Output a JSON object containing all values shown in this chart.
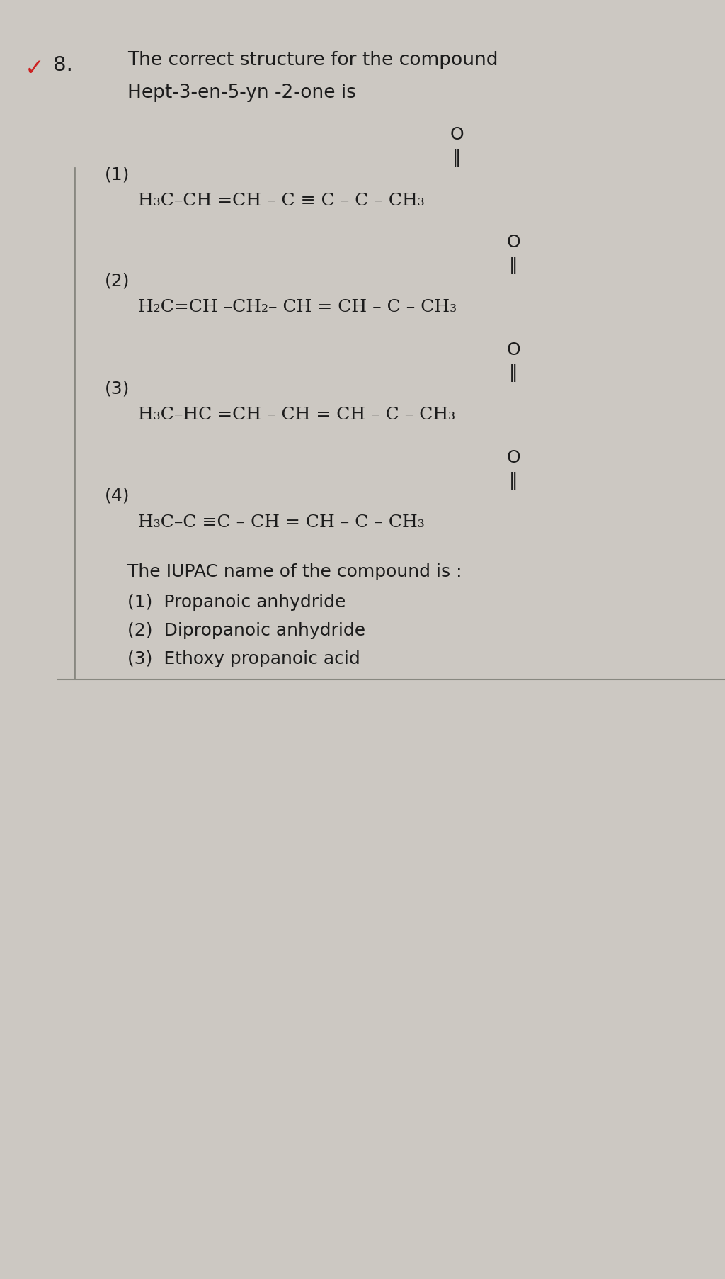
{
  "bg_color_top": "#ccc8c2",
  "bg_color_white": "#edecea",
  "bg_color_bottom": "#5c1010",
  "question_num": "8.",
  "title_line1": "The correct structure for the compound",
  "title_line2": "Hept-3-en-5-yn -2-one is",
  "opt1_label": "(1)",
  "opt1_formula": "H₃C–CH =CH – C ≡ C – C – CH₃",
  "opt2_label": "(2)",
  "opt2_formula": "H₂C=CH –CH₂– CH = CH – C – CH₃",
  "opt3_label": "(3)",
  "opt3_formula": "H₃C–HC =CH – CH = CH – C – CH₃",
  "opt4_label": "(4)",
  "opt4_formula": "H₃C–C ≡C – CH = CH – C – CH₃",
  "iupac_title": "The IUPAC name of the compound is :",
  "iupac_1": "(1)  Propanoic anhydride",
  "iupac_2": "(2)  Dipropanoic anhydride",
  "iupac_3": "(3)  Ethoxy propanoic acid",
  "text_color": "#1c1c1c",
  "checkmark_color": "#cc2222",
  "line_color": "#888880",
  "fs_title": 19,
  "fs_formula": 18,
  "fs_label": 18,
  "fs_qnum": 21,
  "fs_iupac": 18
}
